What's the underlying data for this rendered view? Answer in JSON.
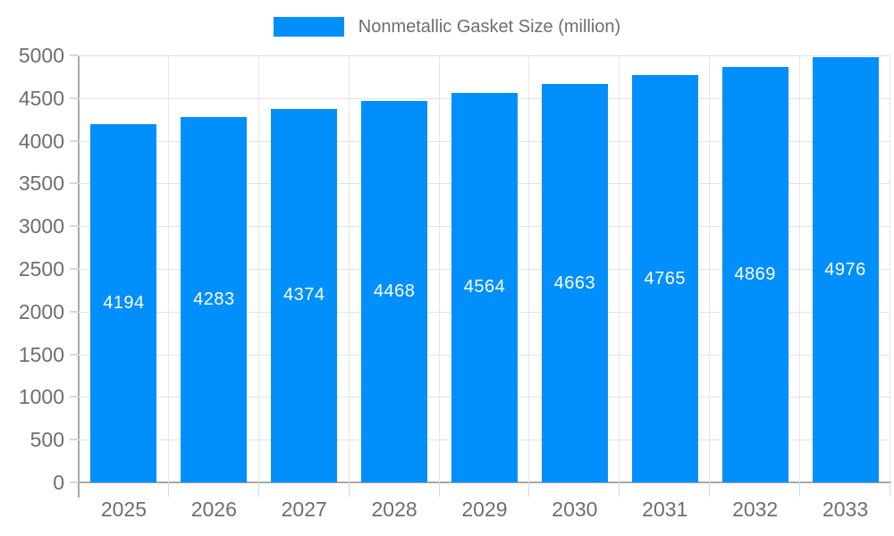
{
  "chart_data": {
    "type": "bar",
    "title": "",
    "legend_label": "Nonmetallic Gasket Size (million)",
    "legend_position": "top",
    "categories": [
      "2025",
      "2026",
      "2027",
      "2028",
      "2029",
      "2030",
      "2031",
      "2032",
      "2033"
    ],
    "series": [
      {
        "name": "Nonmetallic Gasket Size (million)",
        "values": [
          4194,
          4283,
          4374,
          4468,
          4564,
          4663,
          4765,
          4869,
          4976
        ]
      }
    ],
    "value_labels": [
      "4194",
      "4283",
      "4374",
      "4468",
      "4564",
      "4663",
      "4765",
      "4869",
      "4976"
    ],
    "xlabel": "",
    "ylabel": "",
    "ylim": [
      0,
      5000
    ],
    "ytick_step": 500,
    "yticks": [
      "0",
      "500",
      "1000",
      "1500",
      "2000",
      "2500",
      "3000",
      "3500",
      "4000",
      "4500",
      "5000"
    ],
    "grid": true,
    "colors": {
      "bar": "#008FFB",
      "value_label": "#FFFFFF",
      "axis_label": "#6E6E6E",
      "legend_text": "#6E6E6E",
      "gridline": "#E2E2E2",
      "vgridline": "#E6E6E6",
      "tick": "#D8D8D8",
      "axis_line": "#A8A8A8",
      "background": "#FFFFFF"
    }
  }
}
